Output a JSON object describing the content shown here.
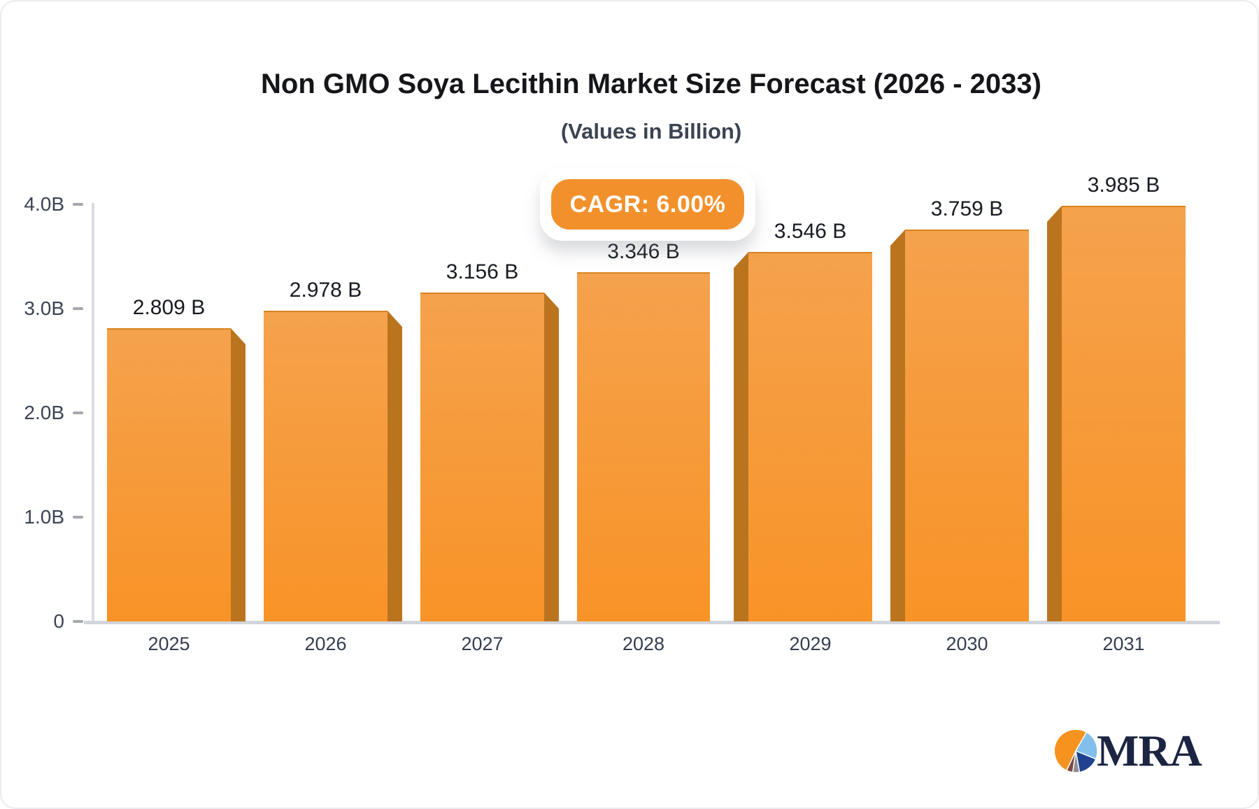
{
  "chart": {
    "title": "Non GMO Soya Lecithin Market Size Forecast (2026 - 2033)",
    "subtitle": "(Values in Billion)",
    "cagr_label": "CAGR: 6.00%"
  },
  "brand": {
    "logo_text": "MRA"
  },
  "colors": {
    "bar_top": "#F5A24D",
    "bar_bottom": "#F89327",
    "bar_side": "#BB741E",
    "badge_bg": "#F2912C",
    "value_text": "#181B22",
    "year_text": "#353E50",
    "axis_text": "#3B4353",
    "tick": "#A6A8AF",
    "axis_line": "#DBDCE3",
    "baseline": "#D3D5DC",
    "logo_navy": "#1B2441",
    "pie_orange": "#F6921E",
    "pie_lightblue": "#82BFEA",
    "pie_darkblue": "#20418F",
    "pie_gray": "#8E8E96",
    "pie_maroon": "#7D4B44"
  },
  "chart_data": {
    "type": "bar",
    "title": "Non GMO Soya Lecithin Market Size Forecast (2026 - 2033)",
    "subtitle": "(Values in Billion)",
    "annotation": "CAGR: 6.00%",
    "categories": [
      "2025",
      "2026",
      "2027",
      "2028",
      "2029",
      "2030",
      "2031"
    ],
    "values": [
      2.809,
      2.978,
      3.156,
      3.346,
      3.546,
      3.759,
      3.985
    ],
    "value_labels": [
      "2.809 B",
      "2.978 B",
      "3.156 B",
      "3.346 B",
      "3.546 B",
      "3.759 B",
      "3.985 B"
    ],
    "unit": "B",
    "xlabel": "",
    "ylabel": "",
    "ylim": [
      0,
      4.0
    ],
    "y_ticks": [
      {
        "value": 0,
        "label": "0"
      },
      {
        "value": 1.0,
        "label": "1.0B"
      },
      {
        "value": 2.0,
        "label": "2.0B"
      },
      {
        "value": 3.0,
        "label": "3.0B"
      },
      {
        "value": 4.0,
        "label": "4.0B"
      }
    ],
    "grid": false,
    "legend": null,
    "bar_style": "3d-orange-gradient"
  }
}
